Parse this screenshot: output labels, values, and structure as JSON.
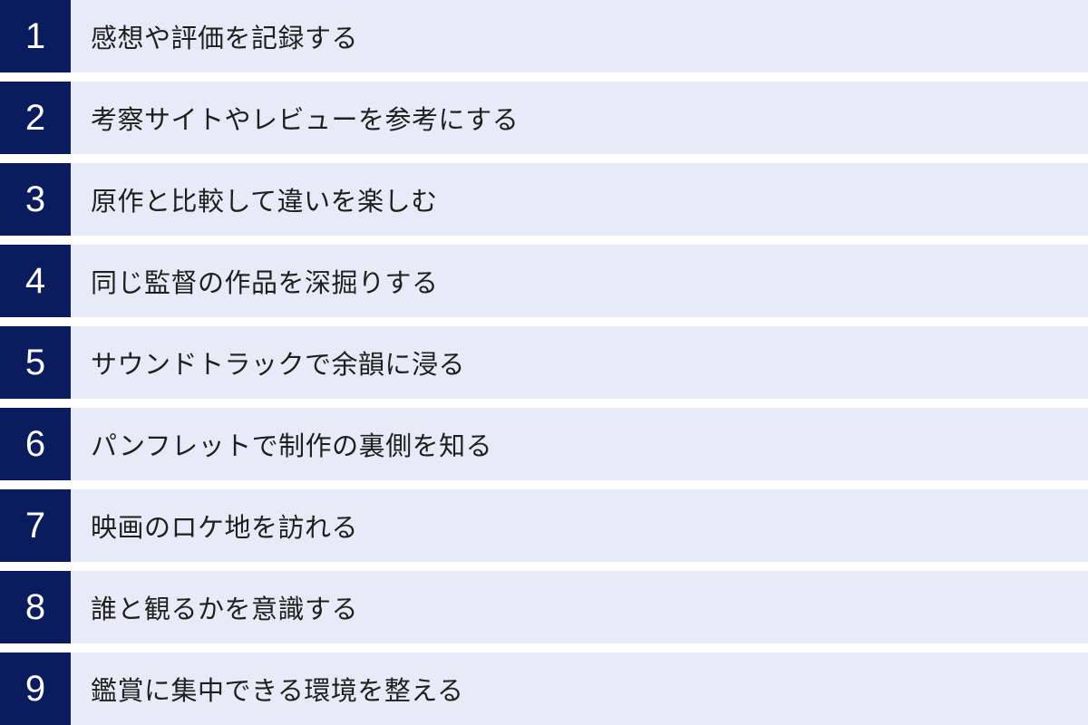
{
  "colors": {
    "background": "#ffffff",
    "number_block": "#0a1b5e",
    "row_background": "#e7ebf7",
    "number_text": "#ffffff",
    "label_text": "#1f1f1f"
  },
  "list": {
    "items": [
      {
        "number": "1",
        "label": "感想や評価を記録する"
      },
      {
        "number": "2",
        "label": "考察サイトやレビューを参考にする"
      },
      {
        "number": "3",
        "label": "原作と比較して違いを楽しむ"
      },
      {
        "number": "4",
        "label": "同じ監督の作品を深掘りする"
      },
      {
        "number": "5",
        "label": "サウンドトラックで余韻に浸る"
      },
      {
        "number": "6",
        "label": "パンフレットで制作の裏側を知る"
      },
      {
        "number": "7",
        "label": "映画のロケ地を訪れる"
      },
      {
        "number": "8",
        "label": "誰と観るかを意識する"
      },
      {
        "number": "9",
        "label": "鑑賞に集中できる環境を整える"
      }
    ]
  }
}
